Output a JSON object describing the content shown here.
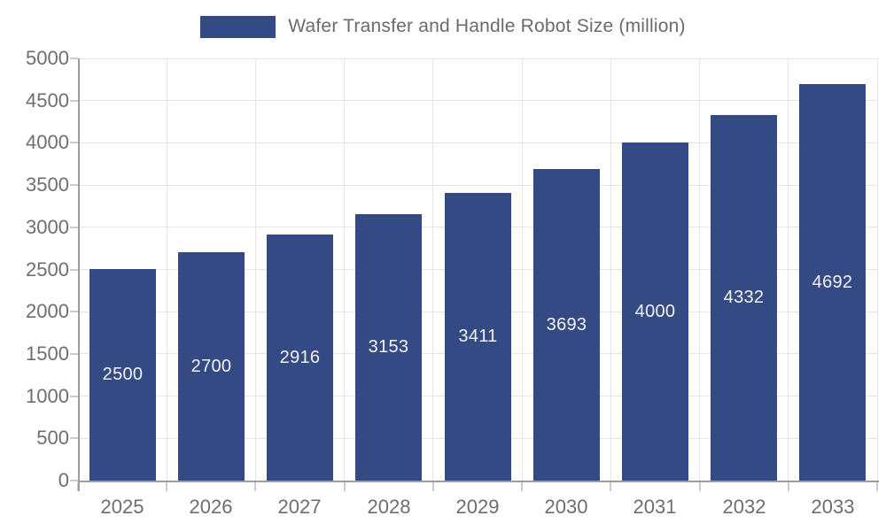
{
  "legend": {
    "label": "Wafer Transfer and Handle Robot Size (million)"
  },
  "colors": {
    "bar": "#344A85",
    "grid": "#E5E5E5",
    "axis": "#9C9C9C",
    "tick": "#CCCCCC",
    "axis_label": "#6E6E6E",
    "legend_text": "#6B6B6B",
    "bar_label": "#F2F2F2",
    "background": "#FFFFFF"
  },
  "chart_data": {
    "type": "bar",
    "title": "",
    "xlabel": "",
    "ylabel": "",
    "categories": [
      "2025",
      "2026",
      "2027",
      "2028",
      "2029",
      "2030",
      "2031",
      "2032",
      "2033"
    ],
    "series": [
      {
        "name": "Wafer Transfer and Handle Robot Size (million)",
        "values": [
          2500,
          2700,
          2916,
          3153,
          3411,
          3693,
          4000,
          4332,
          4692
        ]
      }
    ],
    "ylim": [
      0,
      5000
    ],
    "ytick_step": 500,
    "ytick_labels": [
      "0",
      "500",
      "1000",
      "1500",
      "2000",
      "2500",
      "3000",
      "3500",
      "4000",
      "4500",
      "5000"
    ],
    "grid": true,
    "vertical_grid": true,
    "bar_value_labels": true,
    "bar_label_position": "center",
    "legend_position": "top"
  }
}
